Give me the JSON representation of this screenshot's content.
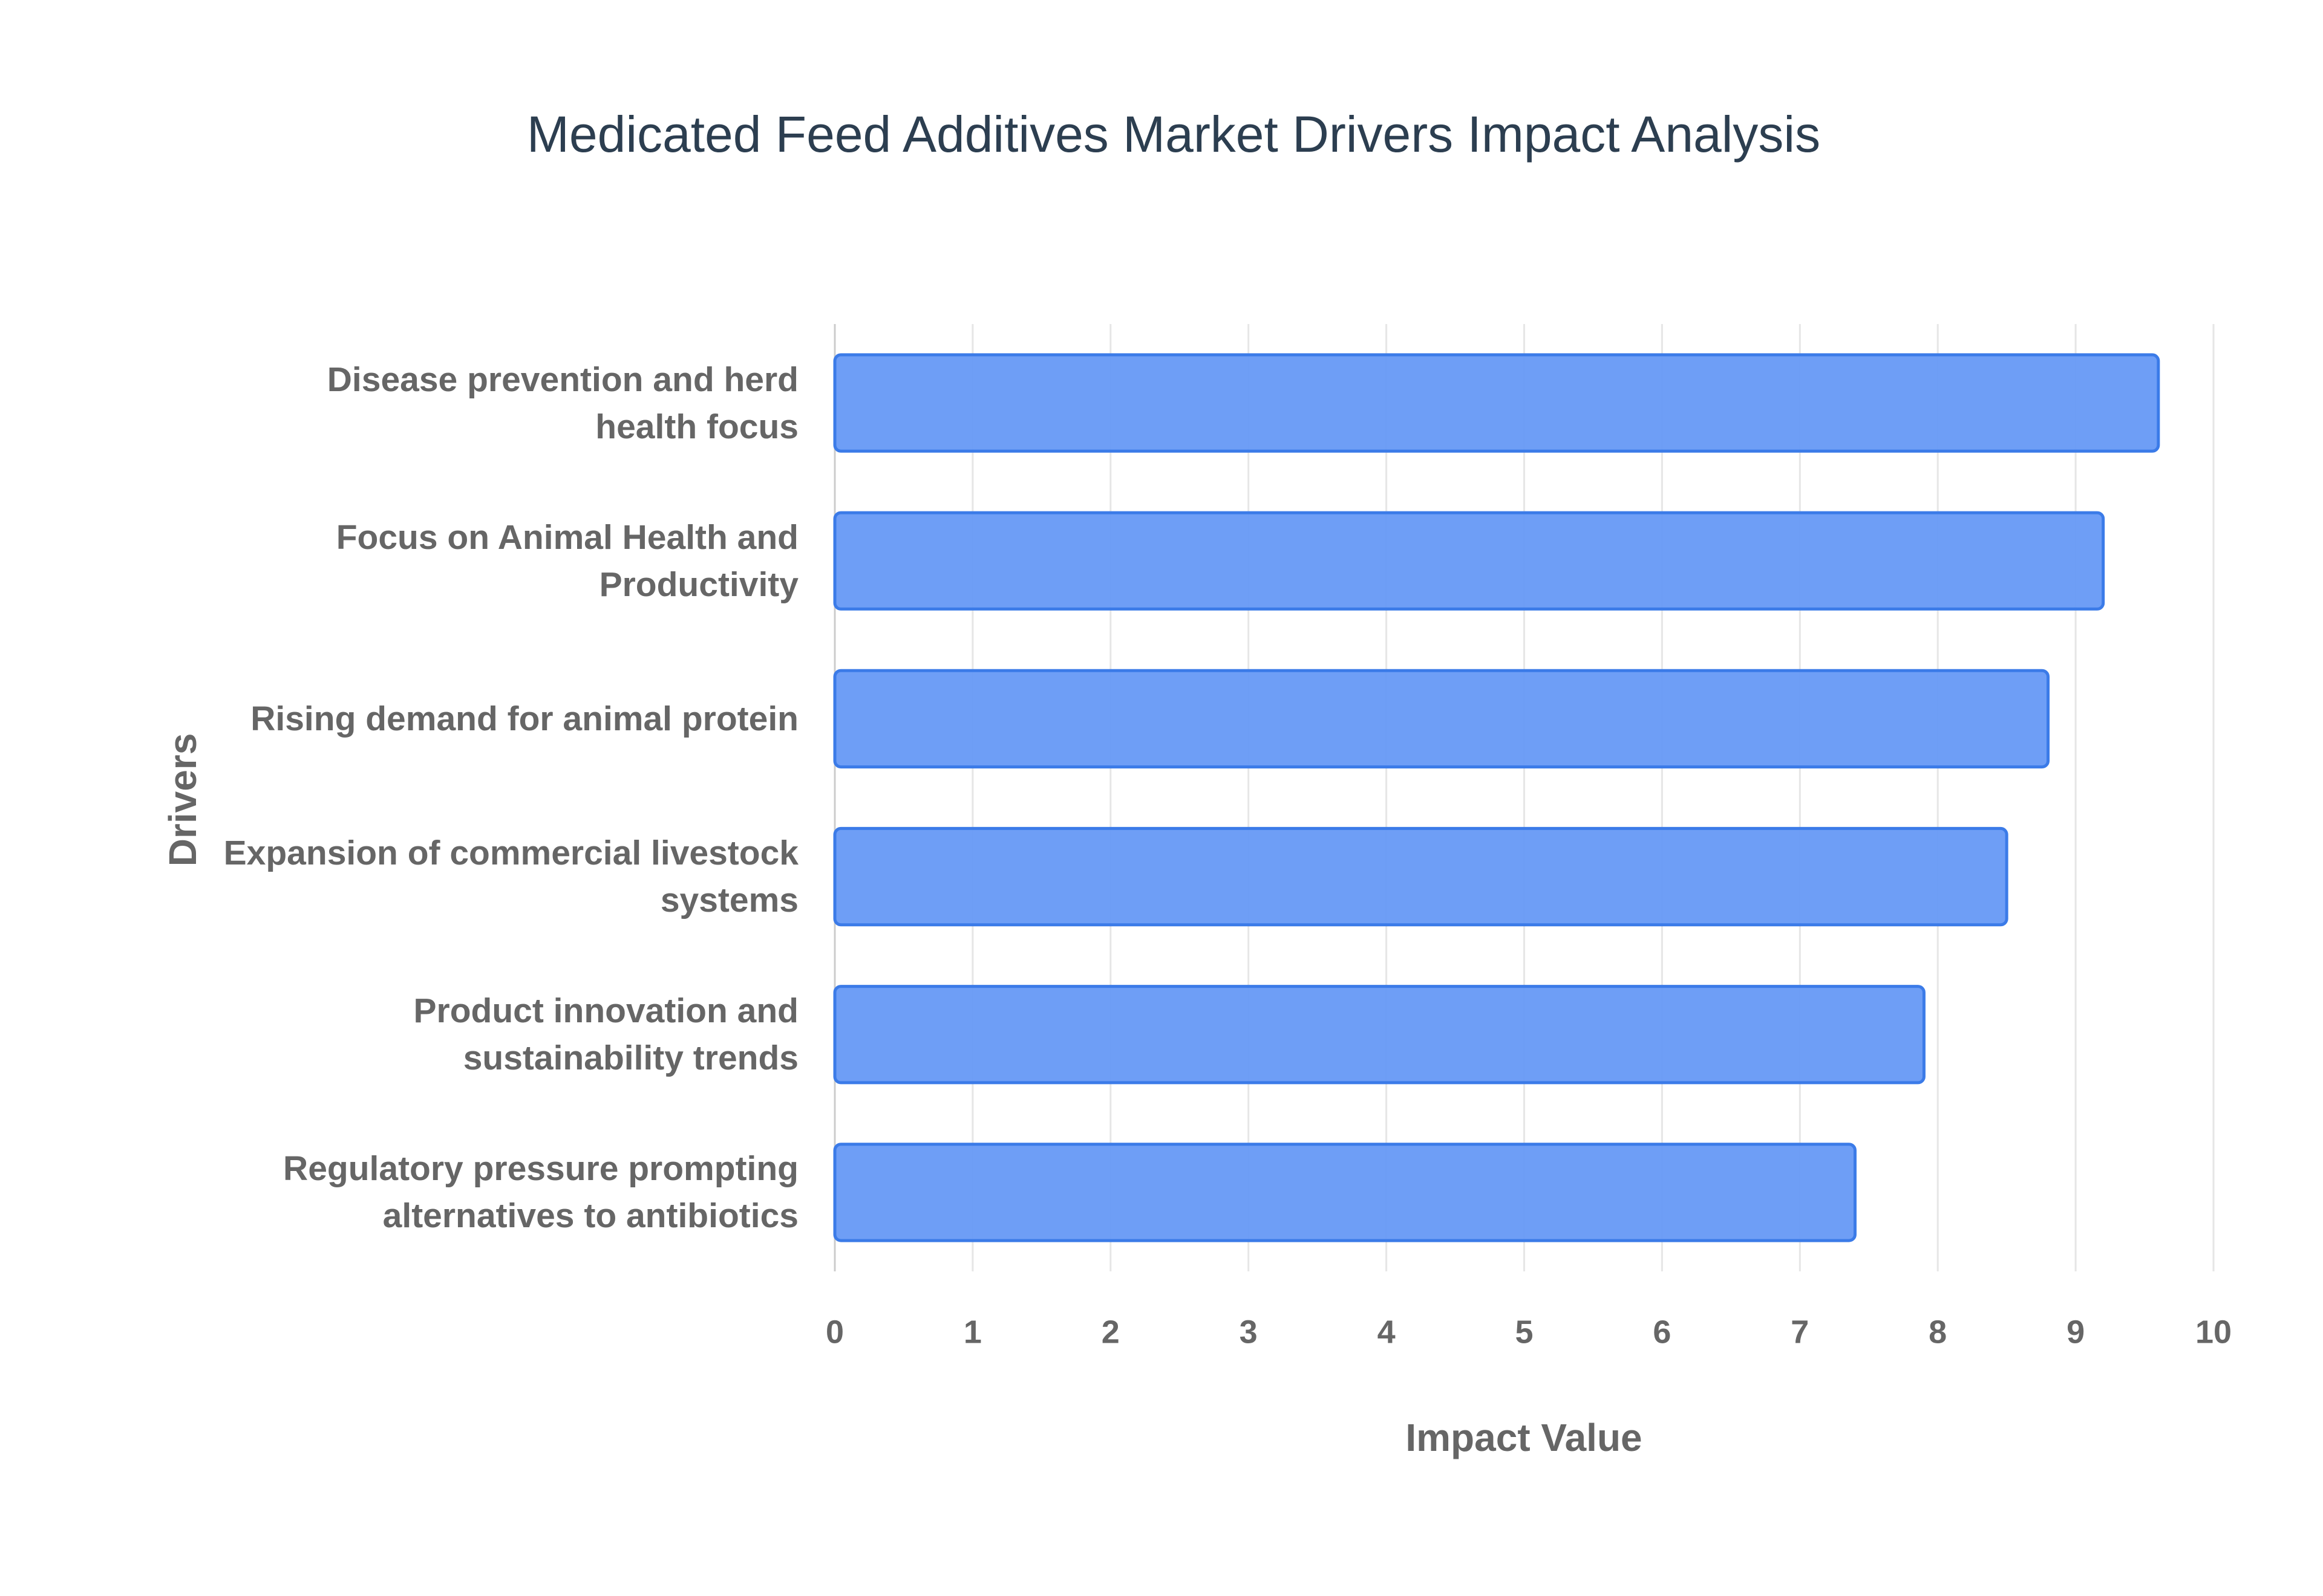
{
  "chart_data": {
    "type": "bar",
    "orientation": "horizontal",
    "title": "Medicated Feed Additives Market Drivers Impact Analysis",
    "x_label": "Impact Value",
    "y_label": "Drivers",
    "categories": [
      "Disease prevention and herd health focus",
      "Focus on Animal Health and Productivity",
      "Rising demand for animal protein",
      "Expansion of commercial livestock systems",
      "Product innovation and sustainability trends",
      "Regulatory pressure prompting alternatives to antibiotics"
    ],
    "values": [
      9.6,
      9.2,
      8.8,
      8.5,
      7.9,
      7.4
    ],
    "color": "#6699f5",
    "edge_color": "#3b7be8",
    "xlim": [
      0,
      10
    ],
    "xticks": [
      0,
      1,
      2,
      3,
      4,
      5,
      6,
      7,
      8,
      9,
      10
    ],
    "grid": true
  }
}
